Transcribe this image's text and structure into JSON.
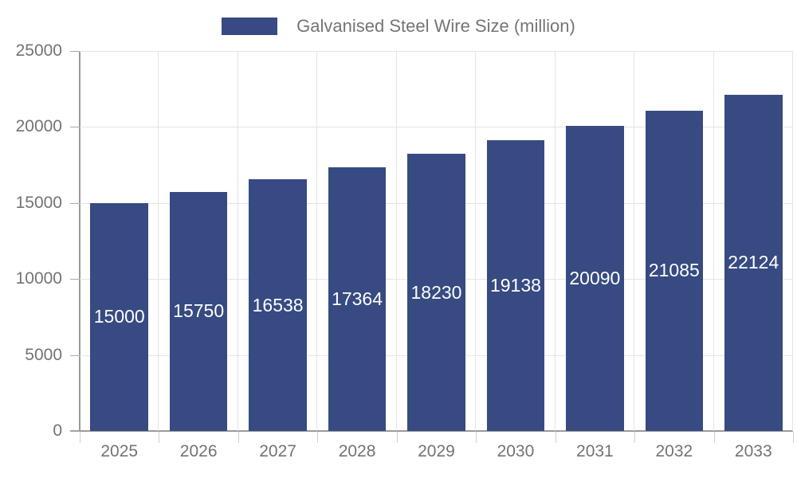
{
  "legend": {
    "label": "Galvanised Steel Wire Size (million)"
  },
  "chart_data": {
    "type": "bar",
    "title": "Galvanised Steel Wire Size (million)",
    "series_name": "Galvanised Steel Wire Size (million)",
    "categories": [
      "2025",
      "2026",
      "2027",
      "2028",
      "2029",
      "2030",
      "2031",
      "2032",
      "2033"
    ],
    "values": [
      15000,
      15750,
      16538,
      17364,
      18230,
      19138,
      20090,
      21085,
      22124
    ],
    "xlabel": "",
    "ylabel": "",
    "ylim": [
      0,
      25000
    ],
    "y_ticks": [
      0,
      5000,
      10000,
      15000,
      20000,
      25000
    ],
    "grid": true,
    "legend_position": "top",
    "colors": {
      "bar": "#374A82",
      "value_label": "#ffffff",
      "axis_text": "#737373",
      "gridline": "#e4e4e4",
      "axis_line": "#9a9a9a",
      "background": "#ffffff"
    }
  }
}
